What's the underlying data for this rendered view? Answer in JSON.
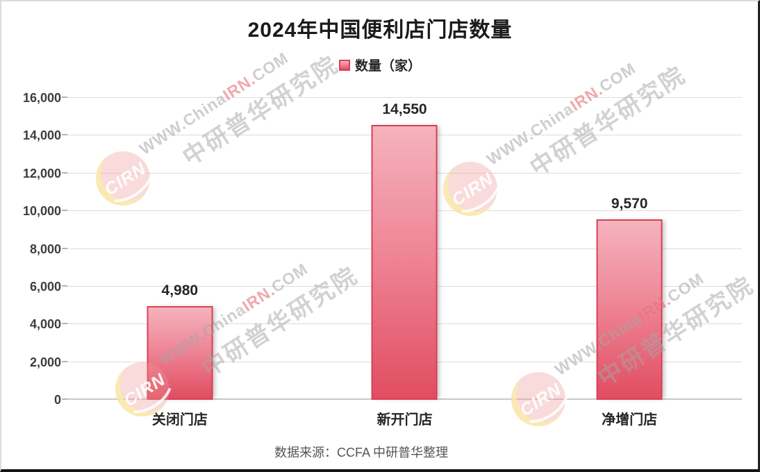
{
  "title": "2024年中国便利店门店数量",
  "legend": {
    "label": "数量（家）"
  },
  "footer": {
    "source": "数据来源：CCFA 中研普华整理"
  },
  "watermark": {
    "logo_text": "CIRN",
    "latin_prefix": "WWW.China",
    "latin_highlight": "IRN.",
    "latin_suffix": "COM",
    "cn": "中研普华研究院"
  },
  "colors": {
    "bar_top": "#f5b3bd",
    "bar_bottom": "#e14d61",
    "bar_border": "#d84055",
    "gridline": "#dcdcdc",
    "title_text": "#1a1a1a",
    "axis_text": "#3d3d3d"
  },
  "chart_data": {
    "type": "bar",
    "title": "2024年中国便利店门店数量",
    "series_name": "数量（家）",
    "categories": [
      "关闭门店",
      "新开门店",
      "净增门店"
    ],
    "values": [
      4980,
      14550,
      9570
    ],
    "value_labels": [
      "4,980",
      "14,550",
      "9,570"
    ],
    "xlabel": "",
    "ylabel": "",
    "ylim": [
      0,
      16000
    ],
    "ytick_step": 2000,
    "yticks": [
      "0",
      "2,000",
      "4,000",
      "6,000",
      "8,000",
      "10,000",
      "12,000",
      "14,000",
      "16,000"
    ],
    "grid": true,
    "legend_position": "top",
    "source": "数据来源：CCFA 中研普华整理"
  }
}
